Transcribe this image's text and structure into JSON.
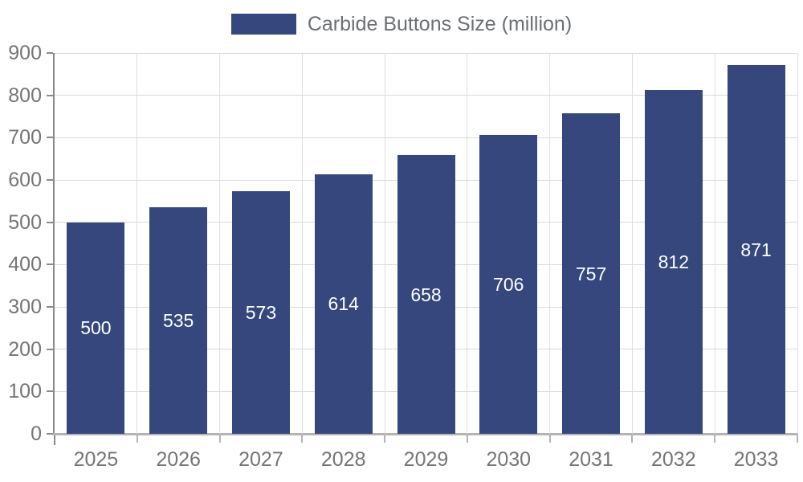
{
  "legend": {
    "label": "Carbide Buttons Size (million)",
    "swatch_color": "#35477D"
  },
  "chart_data": {
    "type": "bar",
    "title": "Carbide Buttons Size (million)",
    "categories": [
      "2025",
      "2026",
      "2027",
      "2028",
      "2029",
      "2030",
      "2031",
      "2032",
      "2033"
    ],
    "series": [
      {
        "name": "Carbide Buttons Size (million)",
        "values": [
          500,
          535,
          573,
          614,
          658,
          706,
          757,
          812,
          871
        ]
      }
    ],
    "xlabel": "",
    "ylabel": "",
    "ylim": [
      0,
      900
    ],
    "ytick_interval": 100,
    "grid": true,
    "legend_position": "top-center",
    "bar_color": "#35477D",
    "value_label_color": "#FFFFFF",
    "axis_label_color": "#757575",
    "value_labels_shown": true,
    "value_label_position": "inside-center"
  }
}
